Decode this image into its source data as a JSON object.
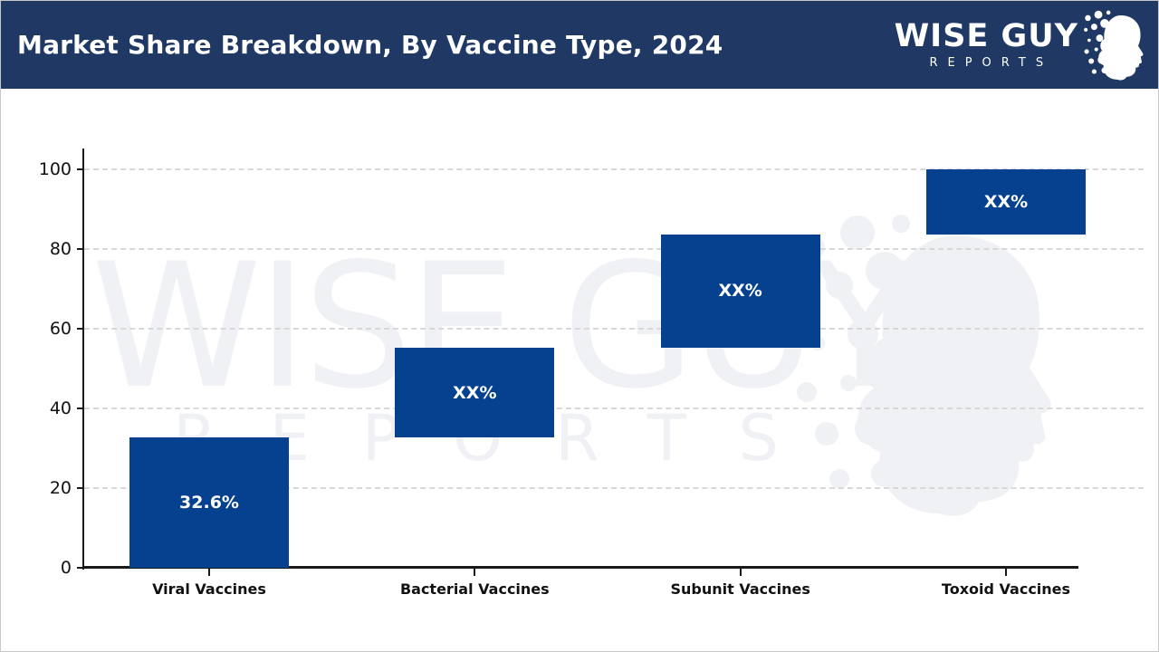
{
  "header": {
    "title": "Market Share Breakdown, By Vaccine Type, 2024",
    "logo": {
      "wordmark": "WISE GUY",
      "subtitle": "REPORTS",
      "face_icon": "dotted-head-profile"
    }
  },
  "watermark": {
    "wordmark": "WISE GUY",
    "subtitle": "REPORTS",
    "face_icon": "dotted-head-profile"
  },
  "colors": {
    "header_bg": "#1f3864",
    "bar_fill": "#05418f",
    "bar_label": "#ffffff",
    "axis": "#1a1a1a",
    "gridline": "#d8d8d8",
    "tick_label": "#111111",
    "watermark": "#f0f1f4",
    "frame_border": "#c8c8c8"
  },
  "chart_data": {
    "type": "bar",
    "subtype": "waterfall",
    "title": "Market Share Breakdown, By Vaccine Type, 2024",
    "categories": [
      "Viral Vaccines",
      "Bacterial Vaccines",
      "Subunit Vaccines",
      "Toxoid Vaccines"
    ],
    "series": [
      {
        "category": "Viral Vaccines",
        "start": 0,
        "end": 32.6,
        "value": 32.6,
        "label": "32.6%"
      },
      {
        "category": "Bacterial Vaccines",
        "start": 32.6,
        "end": 55.2,
        "value": 22.6,
        "label": "XX%"
      },
      {
        "category": "Subunit Vaccines",
        "start": 55.2,
        "end": 83.6,
        "value": 28.4,
        "label": "XX%"
      },
      {
        "category": "Toxoid Vaccines",
        "start": 83.6,
        "end": 100,
        "value": 16.4,
        "label": "XX%"
      }
    ],
    "yticks": [
      0,
      20,
      40,
      60,
      80,
      100
    ],
    "ylim": [
      0,
      105
    ],
    "xlabel": "",
    "ylabel": "",
    "units": "%",
    "grid": "horizontal-dashed",
    "legend": "none"
  }
}
